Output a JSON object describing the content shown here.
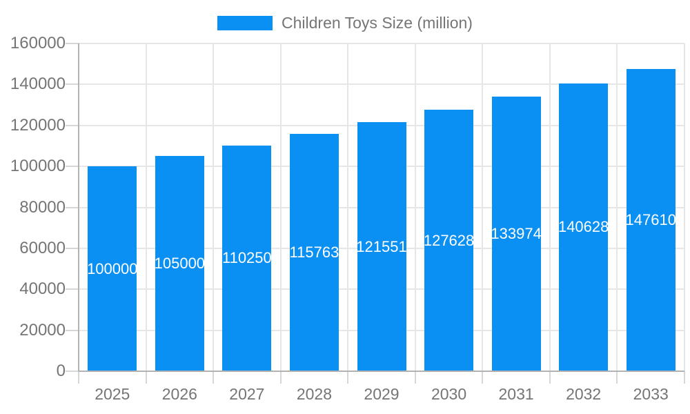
{
  "legend": {
    "label": "Children Toys Size (million)"
  },
  "chart_data": {
    "type": "bar",
    "title": "Children Toys Size (million)",
    "series_name": "Children Toys Size (million)",
    "categories": [
      "2025",
      "2026",
      "2027",
      "2028",
      "2029",
      "2030",
      "2031",
      "2032",
      "2033"
    ],
    "values": [
      100000,
      105000,
      110250,
      115763,
      121551,
      127628,
      133974,
      140628,
      147610
    ],
    "value_labels": [
      "100000",
      "105000",
      "110250",
      "115763",
      "121551",
      "127628",
      "133974",
      "140628",
      "147610"
    ],
    "xlabel": "",
    "ylabel": "",
    "ylim": [
      0,
      160000
    ],
    "ytick_step": 20000,
    "ytick_labels": [
      "0",
      "20000",
      "40000",
      "60000",
      "80000",
      "100000",
      "120000",
      "140000",
      "160000"
    ],
    "grid": true,
    "legend_position": "top-center",
    "colors": {
      "bar": "#0a8ff2",
      "value_label": "#ffffff",
      "axis_label": "#757575",
      "gridline": "#e6e6e6",
      "axis_line": "#b2b2b2",
      "tick": "#d6d6d6",
      "background": "#ffffff"
    }
  }
}
